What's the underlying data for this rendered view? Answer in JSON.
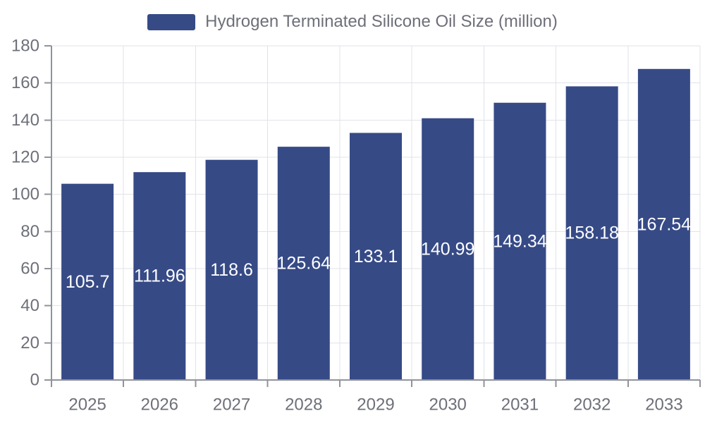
{
  "chart_data": {
    "type": "bar",
    "title": "Hydrogen Terminated Silicone Oil Size (million)",
    "series_name": "Hydrogen Terminated Silicone Oil Size (million)",
    "categories": [
      "2025",
      "2026",
      "2027",
      "2028",
      "2029",
      "2030",
      "2031",
      "2032",
      "2033"
    ],
    "values": [
      105.7,
      111.96,
      118.6,
      125.64,
      133.1,
      140.99,
      149.34,
      158.18,
      167.54
    ],
    "xlabel": "",
    "ylabel": "",
    "ylim": [
      0,
      180
    ],
    "ytick_step": 20,
    "grid": true,
    "legend_position": "top-center",
    "value_label_position": "inside-center",
    "colors": {
      "bar": "#364a86",
      "value_label": "#ffffff",
      "axis_text": "#6e7079",
      "axis_line": "#90939a",
      "grid_line": "#e0e3ea",
      "background": "#ffffff"
    }
  }
}
